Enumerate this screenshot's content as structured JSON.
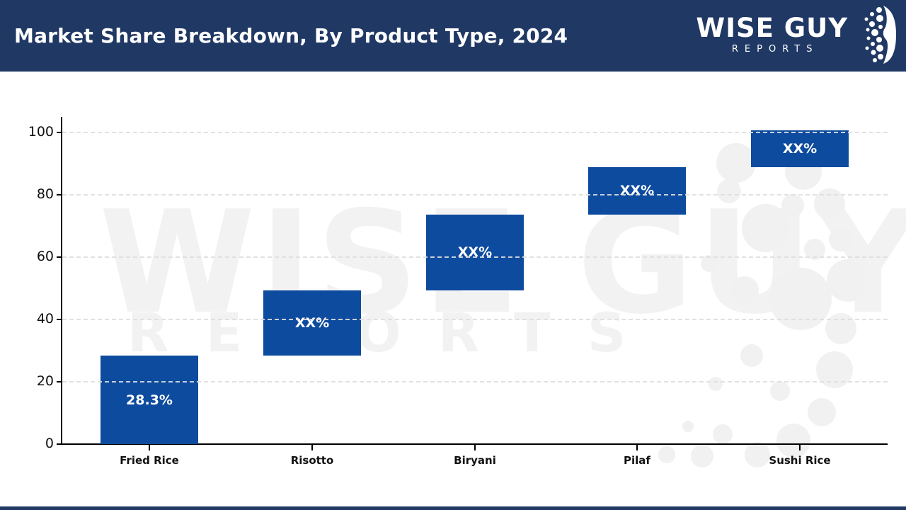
{
  "header": {
    "title": "Market Share Breakdown, By Product Type, 2024",
    "brand": {
      "wordmark": "WISE GUY",
      "reports": "REPORTS"
    }
  },
  "watermark": {
    "line1": "WISE GUY",
    "line2": "REPORTS"
  },
  "colors": {
    "header_bg": "#203864",
    "bar_fill": "#0d4b9e",
    "bar_label": "#ffffff",
    "grid": "#dedede",
    "axis": "#000000",
    "watermark": "#f2f2f2"
  },
  "chart_data": {
    "type": "bar",
    "subtype": "waterfall",
    "title": "Market Share Breakdown, By Product Type, 2024",
    "xlabel": "",
    "ylabel": "",
    "categories": [
      "Fried Rice",
      "Risotto",
      "Biryani",
      "Pilaf",
      "Sushi Rice"
    ],
    "segments": [
      {
        "category": "Fried Rice",
        "start": 0,
        "end": 28.3,
        "label": "28.3%"
      },
      {
        "category": "Risotto",
        "start": 28.3,
        "end": 49.3,
        "label": "XX%"
      },
      {
        "category": "Biryani",
        "start": 49.3,
        "end": 73.7,
        "label": "XX%"
      },
      {
        "category": "Pilaf",
        "start": 73.7,
        "end": 88.9,
        "label": "XX%"
      },
      {
        "category": "Sushi Rice",
        "start": 88.9,
        "end": 100.7,
        "label": "XX%"
      }
    ],
    "yticks": [
      0,
      20,
      40,
      60,
      80,
      100
    ],
    "ylim": [
      0,
      105
    ],
    "grid": "horizontal-dashed",
    "legend": "none"
  }
}
